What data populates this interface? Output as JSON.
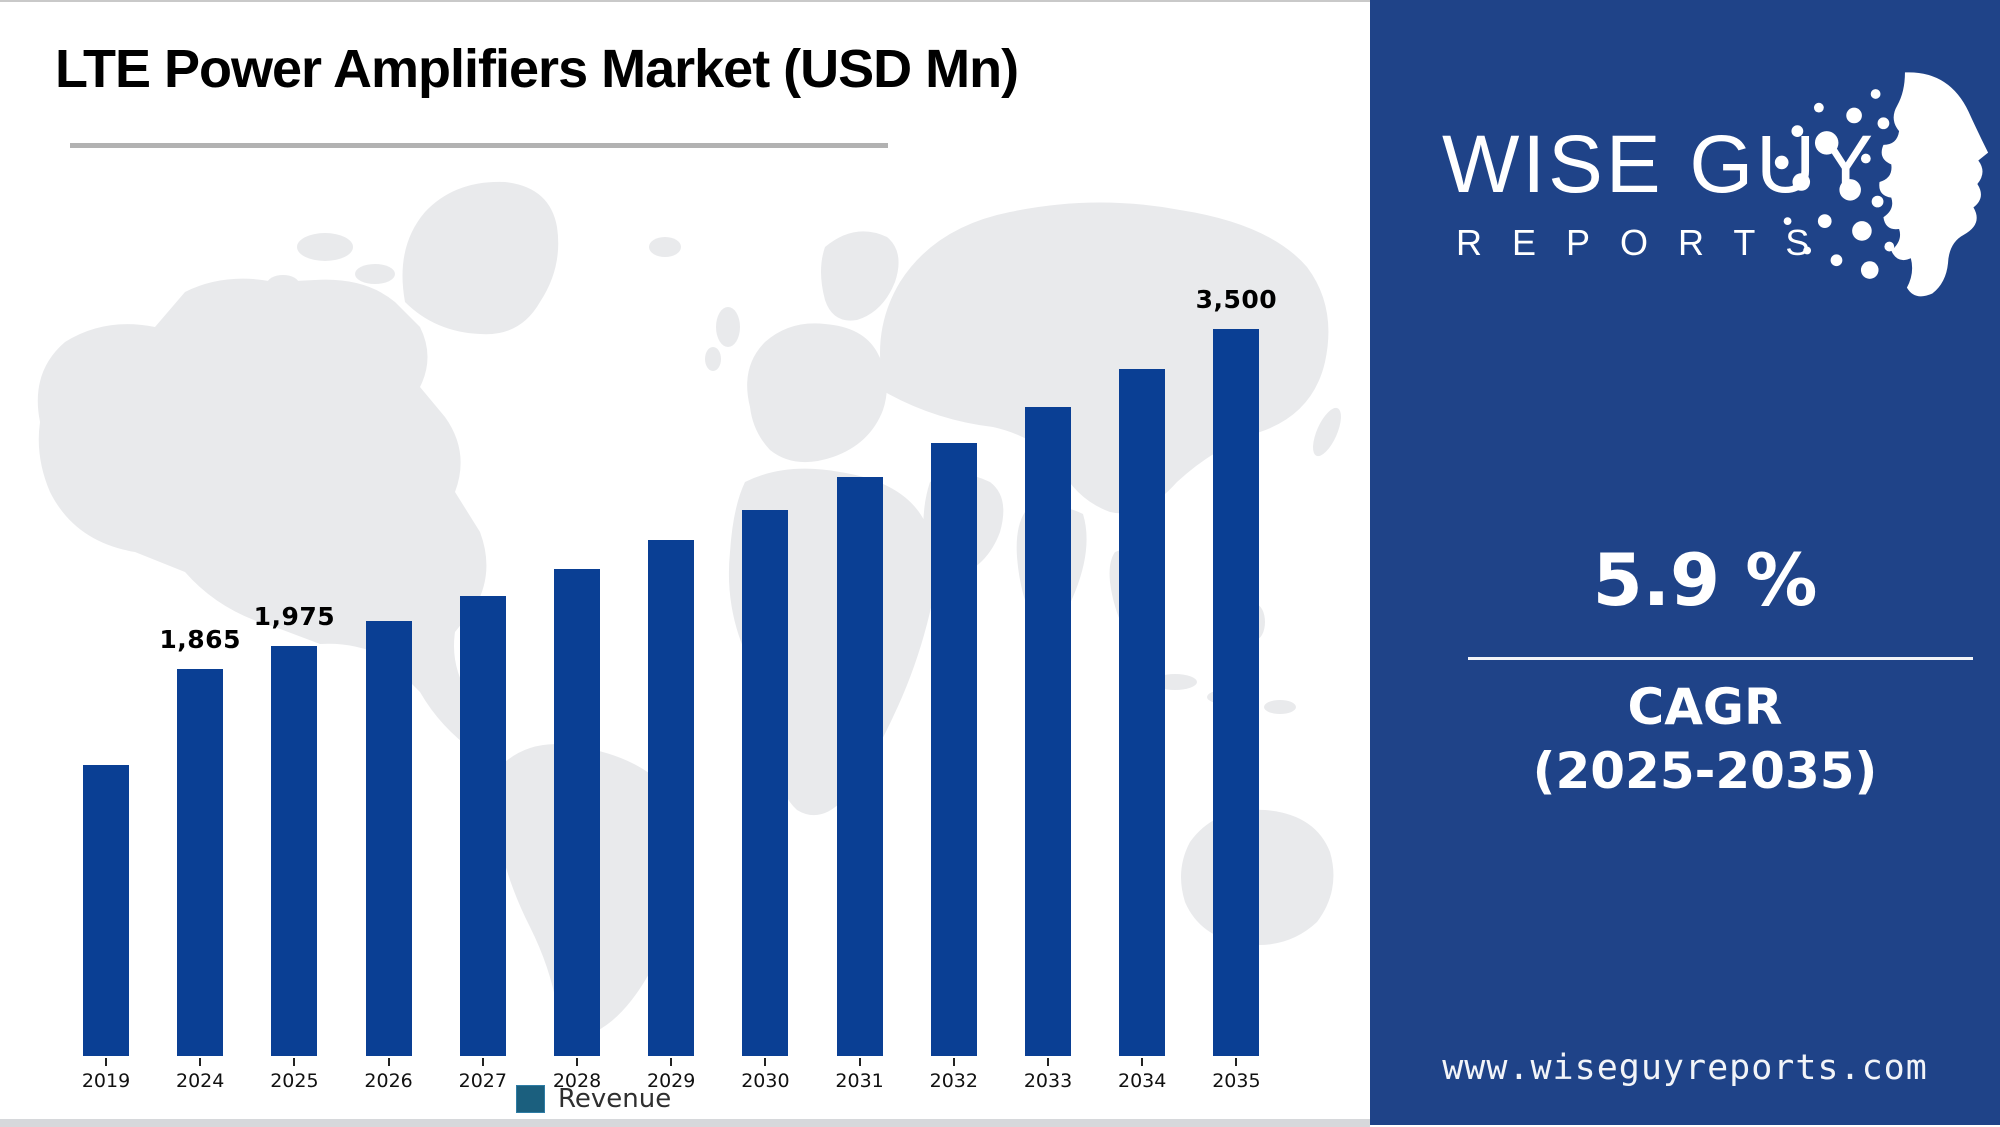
{
  "page": {
    "title": "LTE Power Amplifiers Market (USD Mn)"
  },
  "chart_data": {
    "type": "bar",
    "title": "LTE Power Amplifiers Market (USD Mn)",
    "unit": "USD Mn",
    "categories": [
      "2019",
      "2024",
      "2025",
      "2026",
      "2027",
      "2028",
      "2029",
      "2030",
      "2031",
      "2032",
      "2033",
      "2034",
      "2035"
    ],
    "values": [
      1400,
      1865,
      1975,
      2092,
      2215,
      2346,
      2484,
      2631,
      2786,
      2950,
      3124,
      3309,
      3500
    ],
    "value_labels": [
      "",
      "1,865",
      "1,975",
      "",
      "",
      "",
      "",
      "",
      "",
      "",
      "",
      "",
      "3,500"
    ],
    "ylim": [
      0,
      3500
    ],
    "grid": false,
    "bar_color": "#0a3f94",
    "legend_position": "bottom",
    "legend": [
      {
        "label": "Revenue",
        "color": "#1b5f7e"
      }
    ]
  },
  "sidebar": {
    "background": "#1f4388",
    "brand_line1": "WISE GUY",
    "brand_line2": "REPORTS",
    "cagr_value": "5.9 %",
    "cagr_label": "CAGR",
    "cagr_range": "(2025-2035)",
    "website": "www.wiseguyreports.com"
  }
}
